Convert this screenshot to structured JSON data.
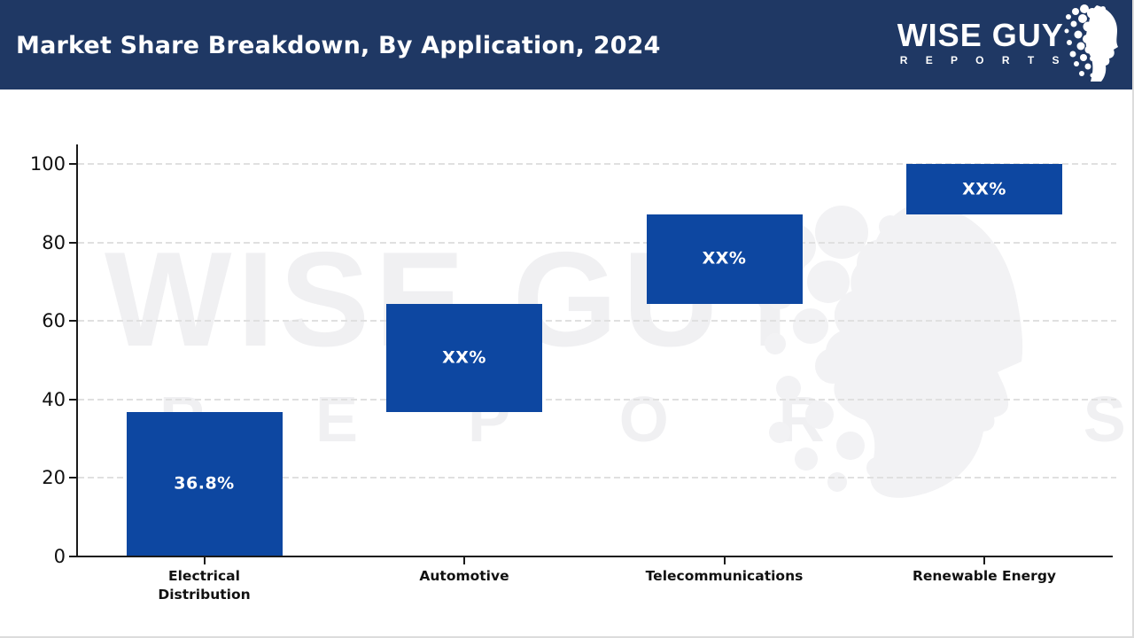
{
  "header": {
    "title": "Market Share Breakdown, By Application, 2024",
    "logo": {
      "line1": "WISE GUY",
      "line2": "R E P O R T S"
    }
  },
  "watermark": {
    "line1": "WISE GUY",
    "line2": "R E P O R T S"
  },
  "colors": {
    "header_bg": "#1f3864",
    "bar": "#0d47a1",
    "bar_label": "#ffffff",
    "gridline": "#e0e0e0",
    "axis": "#1a1a1a",
    "watermark": "#f0f0f2"
  },
  "chart_data": {
    "type": "bar",
    "variant": "waterfall",
    "title": "Market Share Breakdown, By Application, 2024",
    "categories": [
      "Electrical Distribution",
      "Automotive",
      "Telecommunications",
      "Renewable Energy"
    ],
    "bars": [
      {
        "category": "Electrical Distribution",
        "from": 0,
        "to": 36.8,
        "label": "36.8%"
      },
      {
        "category": "Automotive",
        "from": 36.8,
        "to": 64.4,
        "label": "XX%"
      },
      {
        "category": "Telecommunications",
        "from": 64.4,
        "to": 87.2,
        "label": "XX%"
      },
      {
        "category": "Renewable Energy",
        "from": 87.2,
        "to": 100,
        "label": "XX%"
      }
    ],
    "yticks": [
      0,
      20,
      40,
      60,
      80,
      100
    ],
    "ylim": [
      0,
      105
    ],
    "xlabel": "",
    "ylabel": "",
    "legend": "none",
    "grid": "horizontal-dashed"
  }
}
